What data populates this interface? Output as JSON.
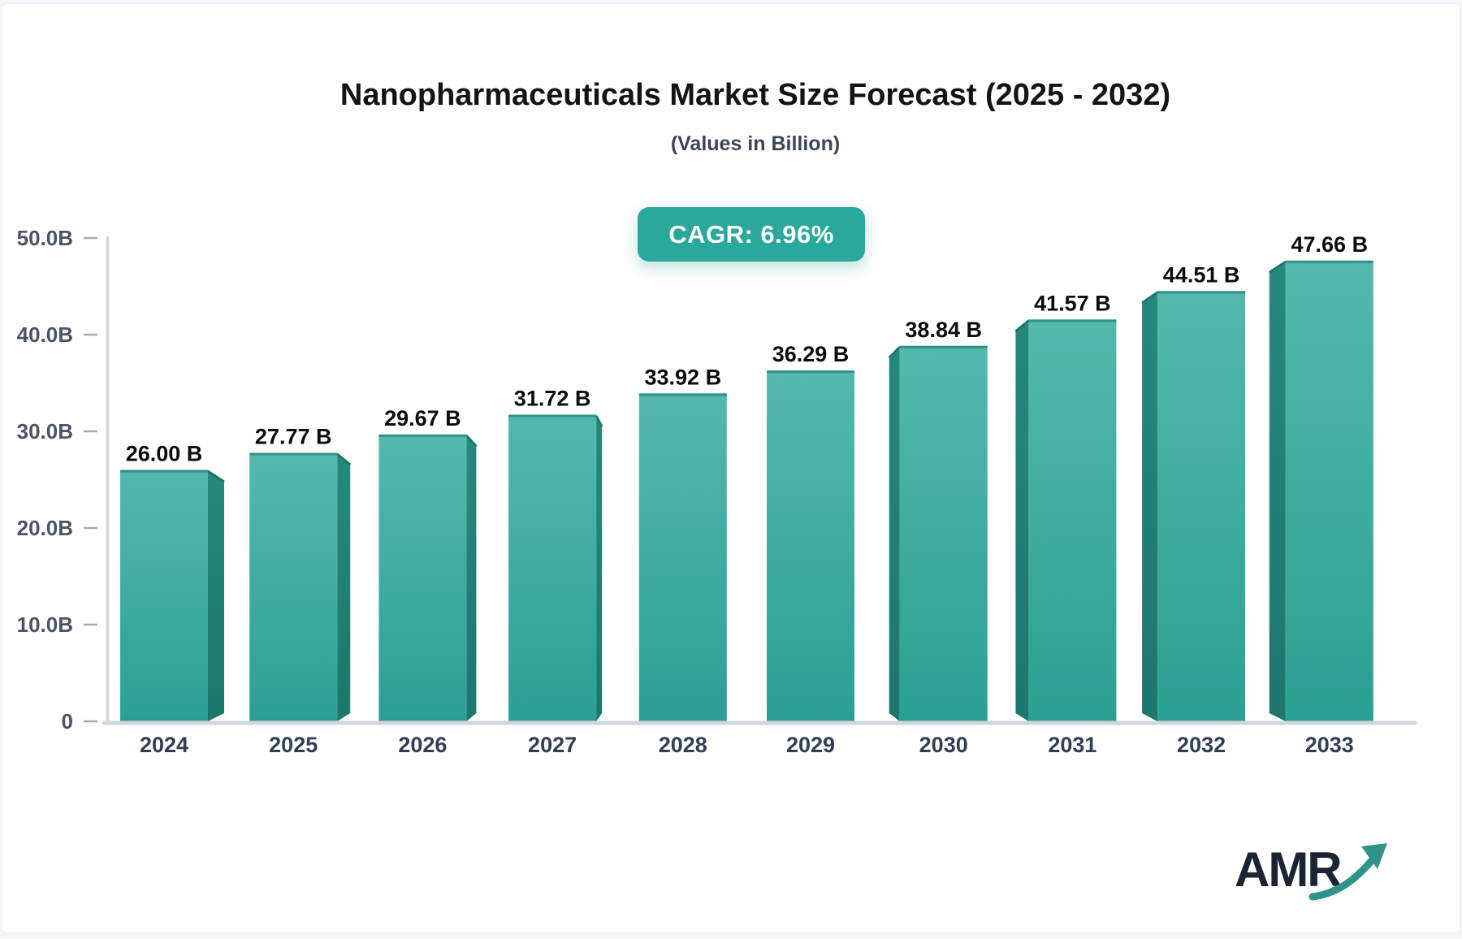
{
  "page": {
    "background": "#F3F5F8",
    "card_background": "#FFFFFF"
  },
  "chart_data": {
    "type": "bar",
    "title": "Nanopharmaceuticals Market Size Forecast (2025 - 2032)",
    "subtitle": "(Values in Billion)",
    "cagr_badge": "CAGR: 6.96%",
    "categories": [
      "2024",
      "2025",
      "2026",
      "2027",
      "2028",
      "2029",
      "2030",
      "2031",
      "2032",
      "2033"
    ],
    "values": [
      26.0,
      27.77,
      29.67,
      31.72,
      33.92,
      36.29,
      38.84,
      41.57,
      44.51,
      47.66
    ],
    "value_labels": [
      "26.00 B",
      "27.77 B",
      "29.67 B",
      "31.72 B",
      "33.92 B",
      "36.29 B",
      "38.84 B",
      "41.57 B",
      "44.51 B",
      "47.66 B"
    ],
    "y_ticks": [
      {
        "value": 0,
        "label": "0"
      },
      {
        "value": 10,
        "label": "10.0B"
      },
      {
        "value": 20,
        "label": "20.0B"
      },
      {
        "value": 30,
        "label": "30.0B"
      },
      {
        "value": 40,
        "label": "40.0B"
      },
      {
        "value": 50,
        "label": "50.0B"
      }
    ],
    "ylim": [
      0,
      50
    ],
    "grid": false,
    "legend": false,
    "colors": {
      "bar_front_top": "#54B8AD",
      "bar_front_bottom": "#2AA093",
      "bar_side_top": "#26897C",
      "bar_side_bottom": "#1C776B",
      "bar_top_border": "#2D9287",
      "axis_line": "#D5D8DD",
      "baseline": "#D2D5DA",
      "tick_dash": "#A5ACB8",
      "y_label": "#4A5466",
      "x_label": "#333E52",
      "value_label": "#0B0C0E",
      "badge_background": "#2AA89B",
      "badge_text": "#FFFFFF"
    }
  },
  "logo": {
    "text": "AMR",
    "text_color": "#1A2433",
    "arrow_color": "#2E9488"
  }
}
